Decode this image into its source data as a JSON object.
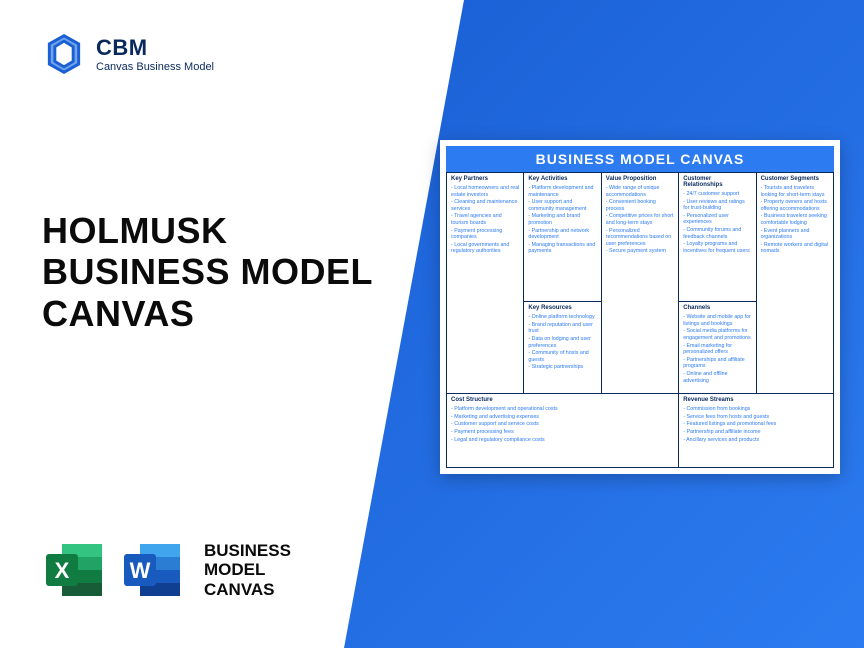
{
  "brand": {
    "abbr": "CBM",
    "subtitle": "Canvas Business Model",
    "icon_color": "#1a5fd4"
  },
  "title": {
    "line1": "HOLMUSK",
    "line2": "BUSINESS MODEL",
    "line3": "CANVAS"
  },
  "bottom_label": "BUSINESS\nMODEL\nCANVAS",
  "excel_icon": {
    "bg": "#107c41",
    "letter": "X"
  },
  "word_icon": {
    "bg": "#185abd",
    "letter": "W"
  },
  "canvas": {
    "title": "BUSINESS MODEL CANVAS",
    "title_bg": "#2c7bf0",
    "border_color": "#0a2a5e",
    "text_color": "#2c7bf0",
    "header_color": "#0a2a5e",
    "sections": {
      "key_partners": {
        "heading": "Key Partners",
        "items": [
          "Local homeowners and real estate investors",
          "Cleaning and maintenance services",
          "Travel agencies and tourism boards",
          "Payment processing companies",
          "Local governments and regulatory authorities"
        ]
      },
      "key_activities": {
        "heading": "Key Activities",
        "items": [
          "Platform development and maintenance",
          "User support and community management",
          "Marketing and brand promotion",
          "Partnership and network development",
          "Managing transactions and payments"
        ]
      },
      "key_resources": {
        "heading": "Key Resources",
        "items": [
          "Online platform technology",
          "Brand reputation and user trust",
          "Data on lodging and user preferences",
          "Community of hosts and guests",
          "Strategic partnerships"
        ]
      },
      "value_proposition": {
        "heading": "Value Proposition",
        "items": [
          "Wide range of unique accommodations",
          "Convenient booking process",
          "Competitive prices for short and long-term stays",
          "Personalized recommendations based on user preferences",
          "Secure payment system"
        ]
      },
      "customer_relationships": {
        "heading": "Customer Relationships",
        "items": [
          "24/7 customer support",
          "User reviews and ratings for trust-building",
          "Personalized user experiences",
          "Community forums and feedback channels",
          "Loyalty programs and incentives for frequent users"
        ]
      },
      "channels": {
        "heading": "Channels",
        "items": [
          "Website and mobile app for listings and bookings",
          "Social media platforms for engagement and promotions",
          "Email marketing for personalized offers",
          "Partnerships and affiliate programs",
          "Online and offline advertising"
        ]
      },
      "customer_segments": {
        "heading": "Customer Segments",
        "items": [
          "Tourists and travelers looking for short-term stays",
          "Property owners and hosts offering accommodations",
          "Business travelers seeking comfortable lodging",
          "Event planners and organizations",
          "Remote workers and digital nomads"
        ]
      },
      "cost_structure": {
        "heading": "Cost Structure",
        "items": [
          "Platform development and operational costs",
          "Marketing and advertising expenses",
          "Customer support and service costs",
          "Payment processing fees",
          "Legal and regulatory compliance costs"
        ]
      },
      "revenue_streams": {
        "heading": "Revenue Streams",
        "items": [
          "Commission from bookings",
          "Service fees from hosts and guests",
          "Featured listings and promotional fees",
          "Partnership and affiliate income",
          "Ancillary services and products"
        ]
      }
    }
  }
}
